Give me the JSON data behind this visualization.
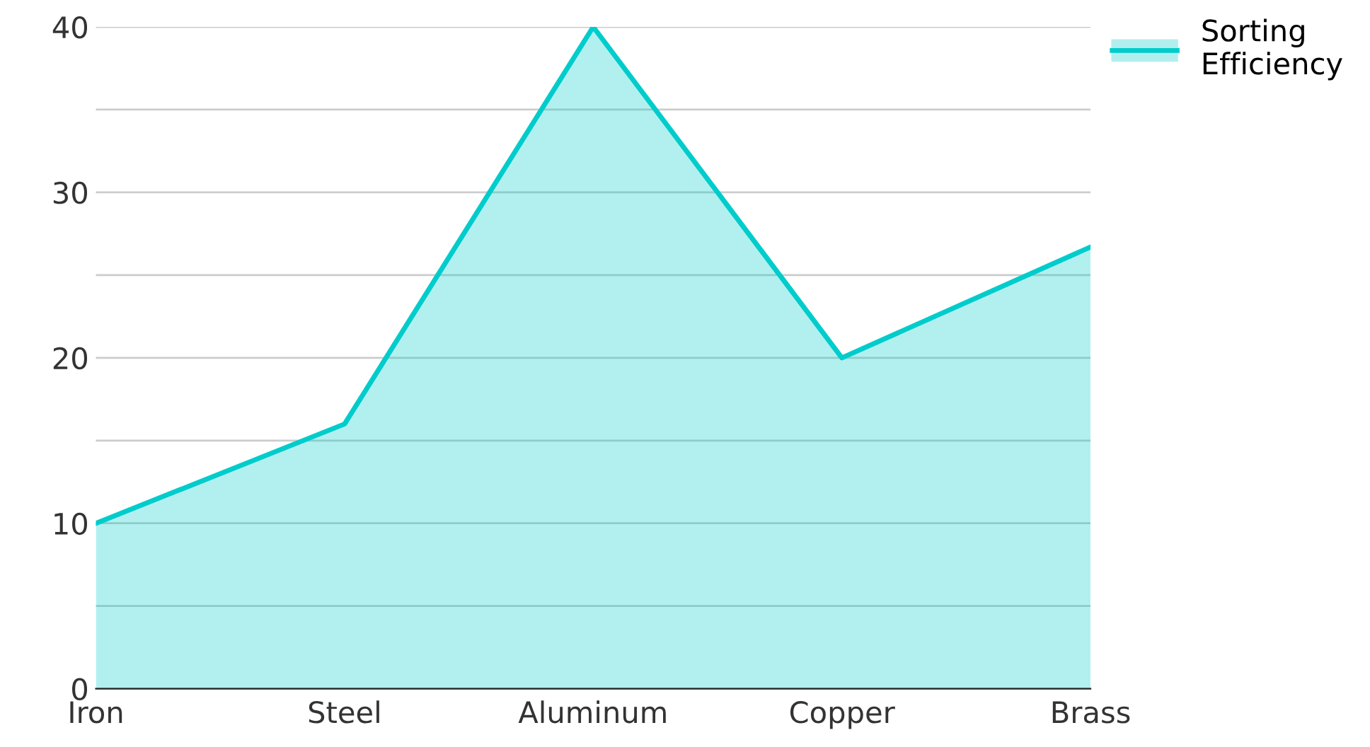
{
  "chart_data": {
    "type": "area",
    "categories": [
      "Iron",
      "Steel",
      "Aluminum",
      "Copper",
      "Brass"
    ],
    "series": [
      {
        "name": "Sorting\nEfficiency",
        "color": "#00cccc",
        "values": [
          10,
          16,
          40,
          20,
          26.7
        ]
      }
    ],
    "ylim": [
      0,
      40
    ],
    "yticks": [
      0,
      {
        "value": 5,
        "label": null
      },
      10,
      {
        "value": 15,
        "label": null
      },
      20,
      {
        "value": 25,
        "label": null
      },
      30,
      {
        "value": 35,
        "label": null
      },
      40
    ],
    "grid": "y",
    "legend": "top right"
  }
}
